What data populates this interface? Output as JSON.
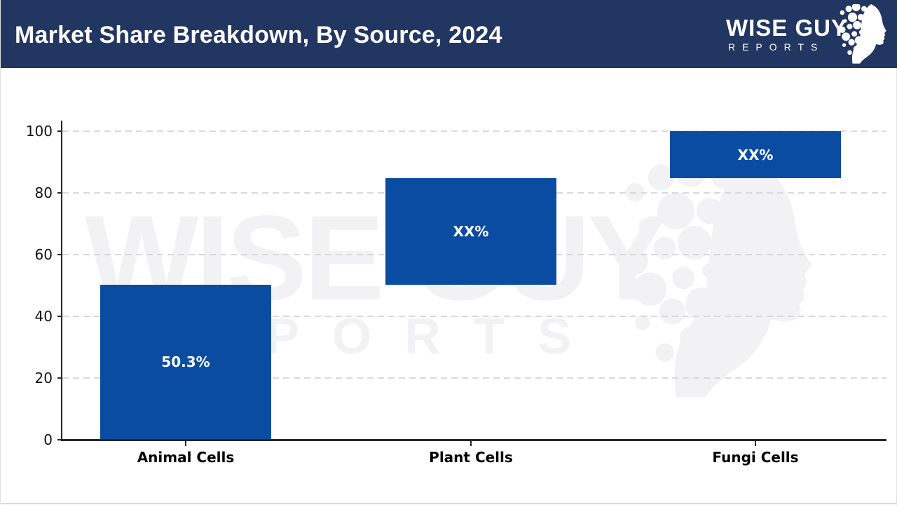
{
  "page": {
    "background": "#ffffff",
    "navy": "#213661",
    "border_gray": "#d9d9d9"
  },
  "header": {
    "title": "Market Share Breakdown, By Source, 2024",
    "bg_color": "#213661",
    "text_color": "#ffffff"
  },
  "logo": {
    "line1": "WISE GUY",
    "line2": "REPORTS",
    "icon": "dotted-head-icon"
  },
  "watermark": {
    "line1": "WISE GUY",
    "line2": "REPORTS",
    "color": "#f2f2f4"
  },
  "chart_data": {
    "type": "bar",
    "subtype": "waterfall-floating-bars",
    "title": "Market Share Breakdown, By Source, 2024",
    "categories": [
      "Animal Cells",
      "Plant Cells",
      "Fungi Cells"
    ],
    "series": [
      {
        "name": "Market Share (%)",
        "segments": [
          {
            "category": "Animal Cells",
            "start": 0,
            "end": 50.3,
            "label": "50.3%"
          },
          {
            "category": "Plant Cells",
            "start": 50.3,
            "end": 84.7,
            "label": "XX%"
          },
          {
            "category": "Fungi Cells",
            "start": 84.7,
            "end": 100,
            "label": "XX%"
          }
        ]
      }
    ],
    "xlabel": "",
    "ylabel": "",
    "ylim": [
      0,
      100
    ],
    "yticks": [
      0,
      20,
      40,
      60,
      80,
      100
    ],
    "grid": "horizontal-dashed",
    "legend": "none",
    "bar_color": "#0a4ca1",
    "bar_label_color": "#ffffff",
    "axis_color": "#262626"
  }
}
